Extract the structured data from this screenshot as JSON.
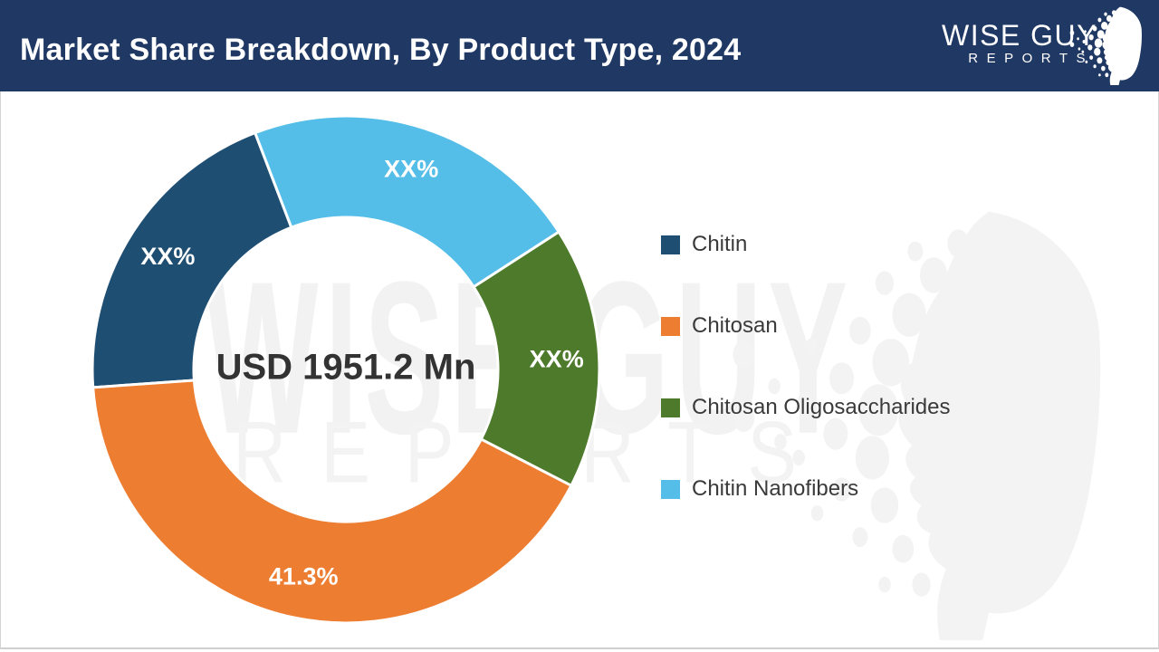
{
  "header": {
    "title": "Market Share Breakdown, By Product Type, 2024",
    "logo": {
      "line1": "WISE GUY",
      "line2": "REPORTS"
    }
  },
  "watermark": {
    "line1": "WISE GUY",
    "line2": "REPORTS"
  },
  "chart_data": {
    "type": "pie",
    "subtype": "donut",
    "title": "Market Share Breakdown, By Product Type, 2024",
    "center_label": "USD 1951.2 Mn",
    "start_angle_deg": 111,
    "direction": "counterclockwise",
    "legend_position": "right",
    "segments": [
      {
        "name": "Chitin",
        "value": 20.3,
        "display_label": "XX%",
        "color": "#1f4e73"
      },
      {
        "name": "Chitosan",
        "value": 41.3,
        "display_label": "41.3%",
        "color": "#ed7d31"
      },
      {
        "name": "Chitosan Oligosaccharides",
        "value": 16.7,
        "display_label": "XX%",
        "color": "#4d7a2b"
      },
      {
        "name": "Chitin Nanofibers",
        "value": 21.7,
        "display_label": "XX%",
        "color": "#55bee8"
      }
    ]
  },
  "colors": {
    "header_bg": "#203864",
    "center_text": "#333333",
    "legend_text": "#3a3a3a",
    "watermark": "#f2f2f2",
    "border": "#d4d4d4",
    "slice_gap": "#ffffff"
  }
}
